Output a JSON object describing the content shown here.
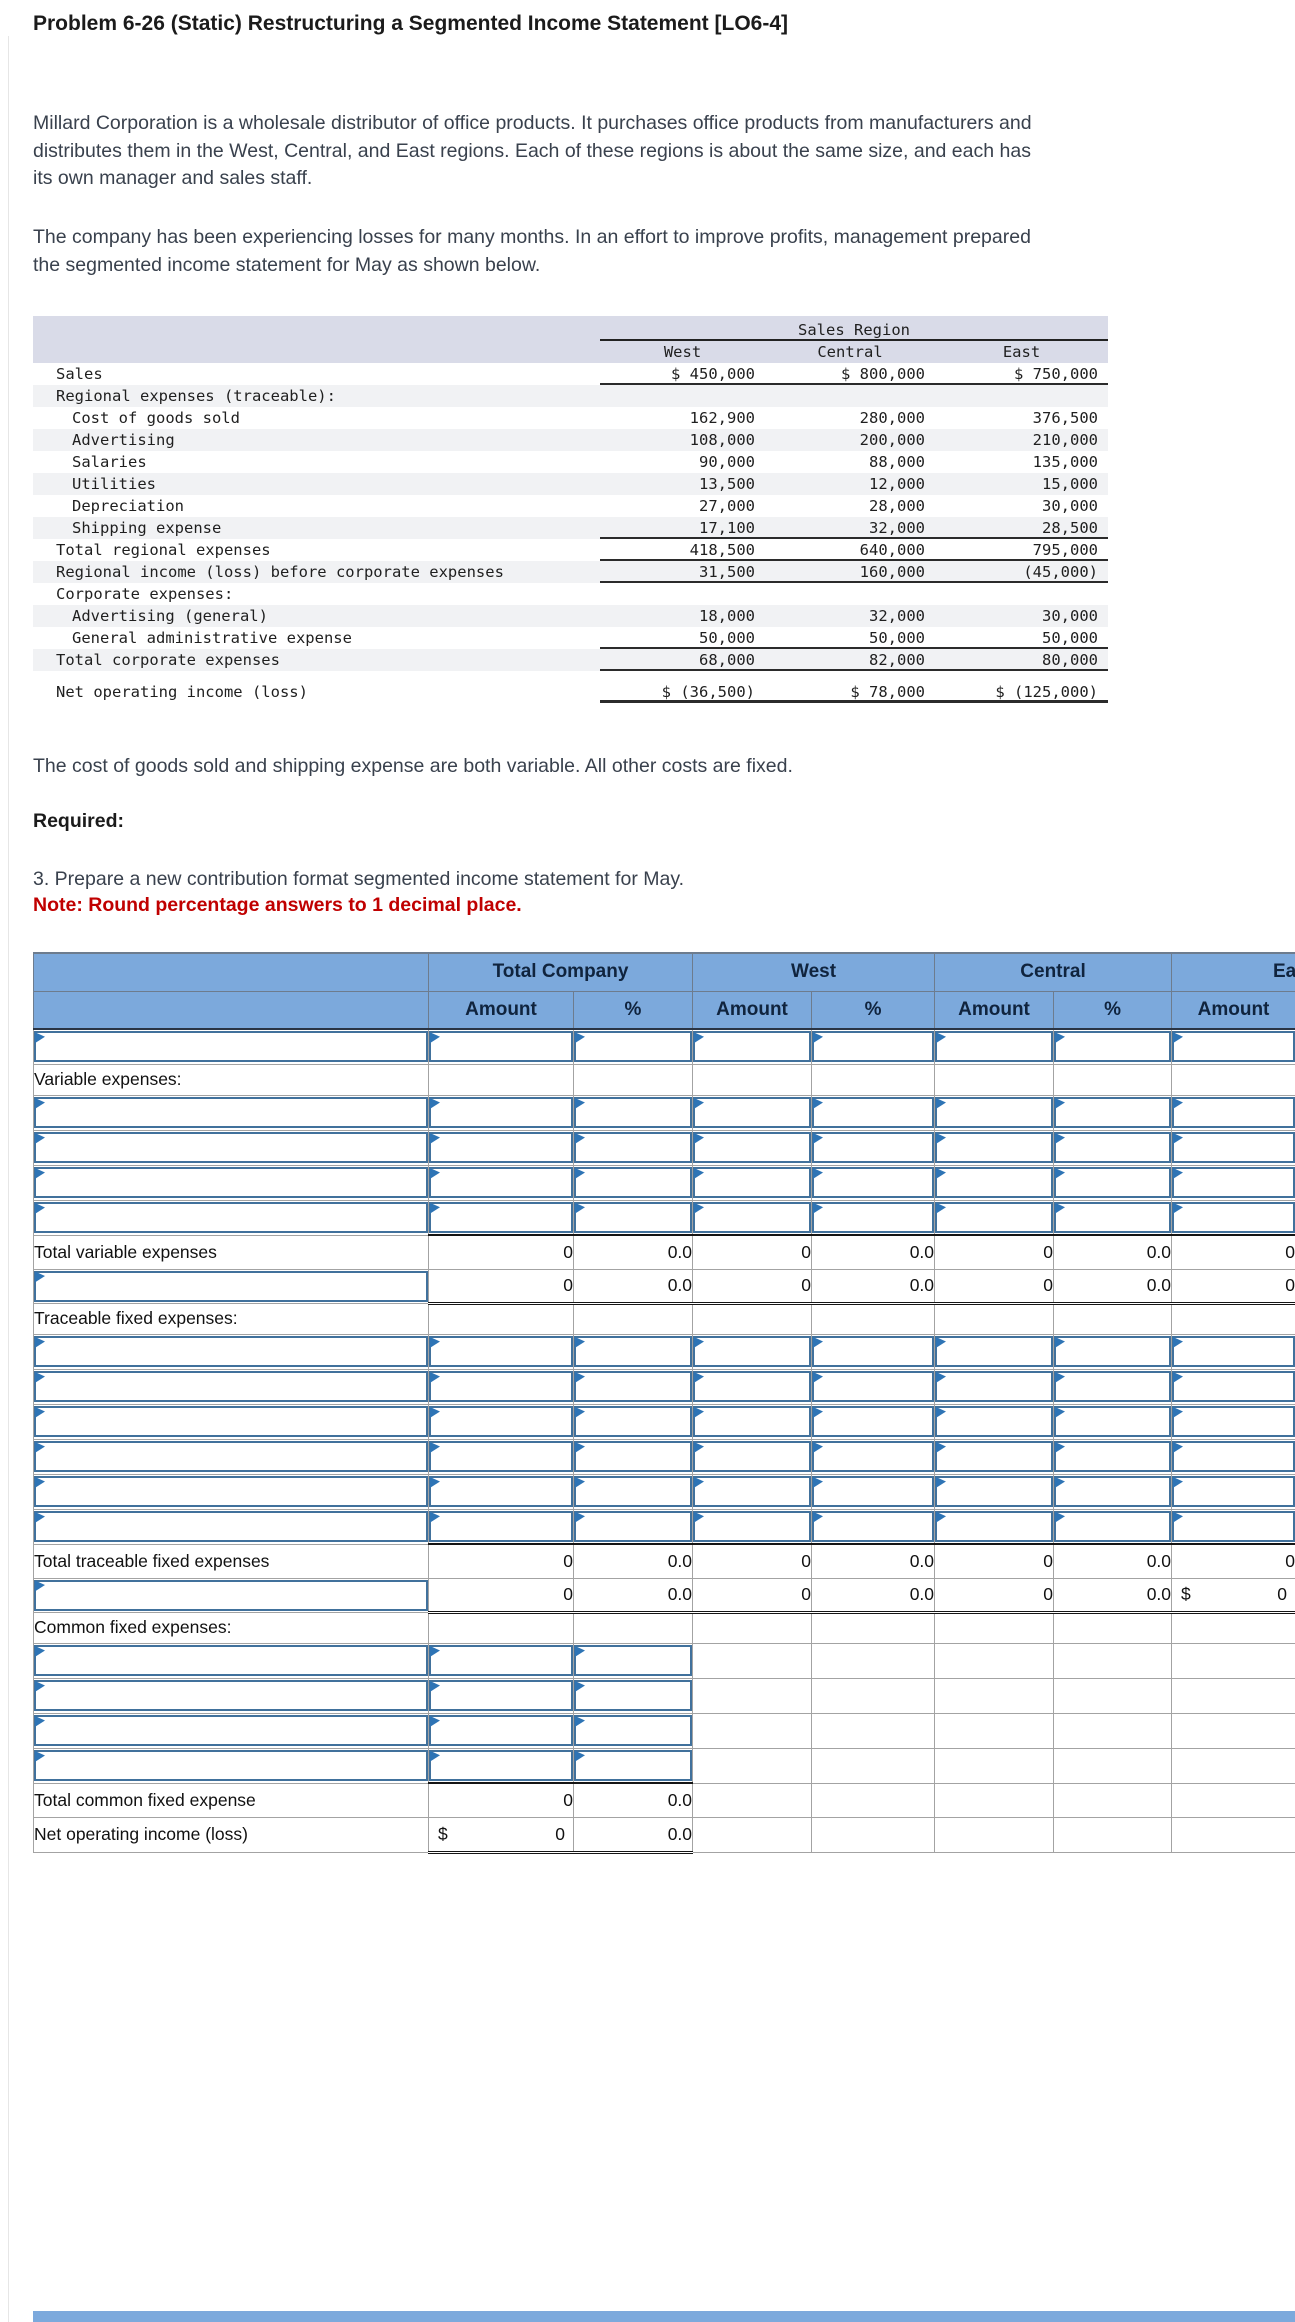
{
  "page": {
    "title": "Problem 6-26 (Static) Restructuring a Segmented Income Statement [LO6-4]",
    "para1": "Millard Corporation is a wholesale distributor of office products. It purchases office products from manufacturers and\ndistributes them in the West, Central, and East regions. Each of these regions is about the same size, and each has\nits own manager and sales staff.",
    "para2": "The company has been experiencing losses for many months. In an effort to improve profits, management prepared\nthe segmented income statement for May as shown below.",
    "note_after_table": "The cost of goods sold and shipping expense are both variable. All other costs are fixed.",
    "required_label": "Required:",
    "requirement": "3. Prepare a new contribution format segmented income statement for May.",
    "note_red": "Note: Round percentage answers to 1 decimal place."
  },
  "income_statement": {
    "region_header": "Sales Region",
    "columns": [
      "West",
      "Central",
      "East"
    ],
    "rows": [
      {
        "label": "Sales",
        "values": [
          "$ 450,000",
          "$ 800,000",
          "$ 750,000"
        ],
        "underline": true
      },
      {
        "label": "Regional expenses (traceable):",
        "values": [],
        "shade": true
      },
      {
        "label": "Cost of goods sold",
        "values": [
          "162,900",
          "280,000",
          "376,500"
        ],
        "indent": true
      },
      {
        "label": "Advertising",
        "values": [
          "108,000",
          "200,000",
          "210,000"
        ],
        "indent": true,
        "shade": true
      },
      {
        "label": "Salaries",
        "values": [
          "90,000",
          "88,000",
          "135,000"
        ],
        "indent": true
      },
      {
        "label": "Utilities",
        "values": [
          "13,500",
          "12,000",
          "15,000"
        ],
        "indent": true,
        "shade": true
      },
      {
        "label": "Depreciation",
        "values": [
          "27,000",
          "28,000",
          "30,000"
        ],
        "indent": true
      },
      {
        "label": "Shipping expense",
        "values": [
          "17,100",
          "32,000",
          "28,500"
        ],
        "indent": true,
        "shade": true,
        "underline": true
      },
      {
        "label": "Total regional expenses",
        "values": [
          "418,500",
          "640,000",
          "795,000"
        ],
        "underline": true
      },
      {
        "label": "Regional income (loss) before corporate expenses",
        "values": [
          "31,500",
          "160,000",
          "(45,000)"
        ],
        "shade": true,
        "underline": true
      },
      {
        "label": "Corporate expenses:",
        "values": []
      },
      {
        "label": "Advertising (general)",
        "values": [
          "18,000",
          "32,000",
          "30,000"
        ],
        "indent": true,
        "shade": true
      },
      {
        "label": "General administrative expense",
        "values": [
          "50,000",
          "50,000",
          "50,000"
        ],
        "indent": true,
        "underline": true
      },
      {
        "label": "Total corporate expenses",
        "values": [
          "68,000",
          "82,000",
          "80,000"
        ],
        "shade": true,
        "underline": true
      },
      {
        "label": "Net operating income (loss)",
        "values": [
          "$ (36,500)",
          "$ 78,000",
          "$ (125,000)"
        ],
        "gap": true,
        "final": true
      }
    ]
  },
  "form_table": {
    "column_groups": [
      "Total Company",
      "West",
      "Central",
      "East"
    ],
    "sub_columns": [
      "Amount",
      "%"
    ],
    "rows": [
      {
        "type": "input_row"
      },
      {
        "type": "section",
        "label": "Variable expenses:"
      },
      {
        "type": "input_row"
      },
      {
        "type": "input_row"
      },
      {
        "type": "input_row"
      },
      {
        "type": "input_row"
      },
      {
        "type": "total",
        "label": "Total variable expenses",
        "values": [
          "0",
          "0.0",
          "0",
          "0.0",
          "0",
          "0.0",
          "0"
        ]
      },
      {
        "type": "input_total",
        "values": [
          "0",
          "0.0",
          "0",
          "0.0",
          "0",
          "0.0",
          "0"
        ]
      },
      {
        "type": "section",
        "label": "Traceable fixed expenses:"
      },
      {
        "type": "input_row"
      },
      {
        "type": "input_row"
      },
      {
        "type": "input_row"
      },
      {
        "type": "input_row"
      },
      {
        "type": "input_row"
      },
      {
        "type": "input_row"
      },
      {
        "type": "total",
        "label": "Total traceable fixed expenses",
        "values": [
          "0",
          "0.0",
          "0",
          "0.0",
          "0",
          "0.0",
          "0"
        ]
      },
      {
        "type": "input_total",
        "values": [
          "0",
          "0.0",
          "0",
          "0.0",
          "0",
          "0.0",
          "$ 0"
        ]
      },
      {
        "type": "section",
        "label": "Common fixed expenses:"
      },
      {
        "type": "input_row_company"
      },
      {
        "type": "input_row_company"
      },
      {
        "type": "input_row_company"
      },
      {
        "type": "input_row_company"
      },
      {
        "type": "total_company",
        "label": "Total common fixed expense",
        "values": [
          "0",
          "0.0"
        ]
      },
      {
        "type": "net",
        "label": "Net operating income (loss)",
        "values": [
          "$ 0",
          "0.0"
        ]
      }
    ]
  },
  "colors": {
    "form_header_blue": "#7ca9dc",
    "input_border_blue": "#41719c",
    "input_flag_blue": "#2e74b5",
    "statement_header_gray": "#d9dbe8",
    "note_red": "#c00000"
  }
}
